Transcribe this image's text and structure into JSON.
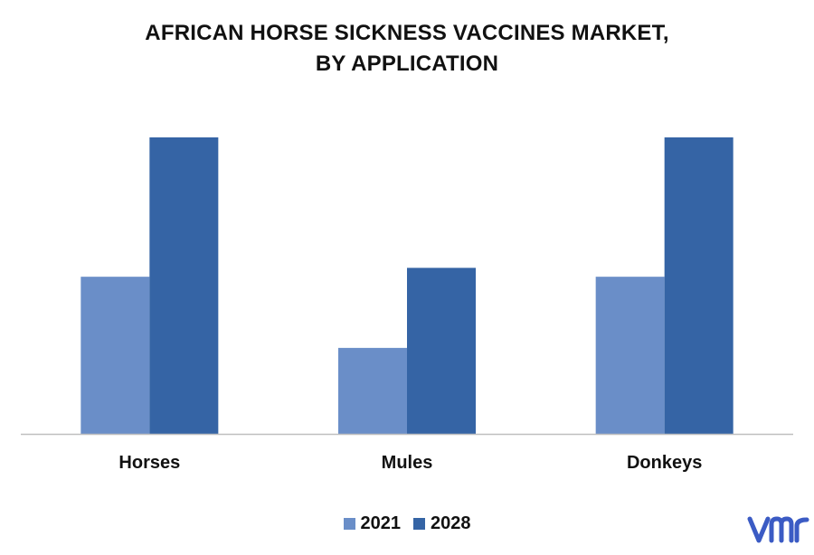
{
  "chart_data": {
    "type": "bar",
    "title_lines": [
      "AFRICAN HORSE SICKNESS VACCINES MARKET,",
      "BY APPLICATION"
    ],
    "categories": [
      "Horses",
      "Mules",
      "Donkeys"
    ],
    "series": [
      {
        "name": "2021",
        "color": "#6a8ec8",
        "values": [
          53,
          29,
          53
        ]
      },
      {
        "name": "2028",
        "color": "#3564a5",
        "values": [
          100,
          56,
          100
        ]
      }
    ],
    "ylim": [
      0,
      100
    ],
    "grid": false,
    "legend_position": "bottom-center",
    "axis_color": "#bfbfbf"
  },
  "logo": {
    "text": "vmr",
    "color": "#3b5bc4"
  }
}
